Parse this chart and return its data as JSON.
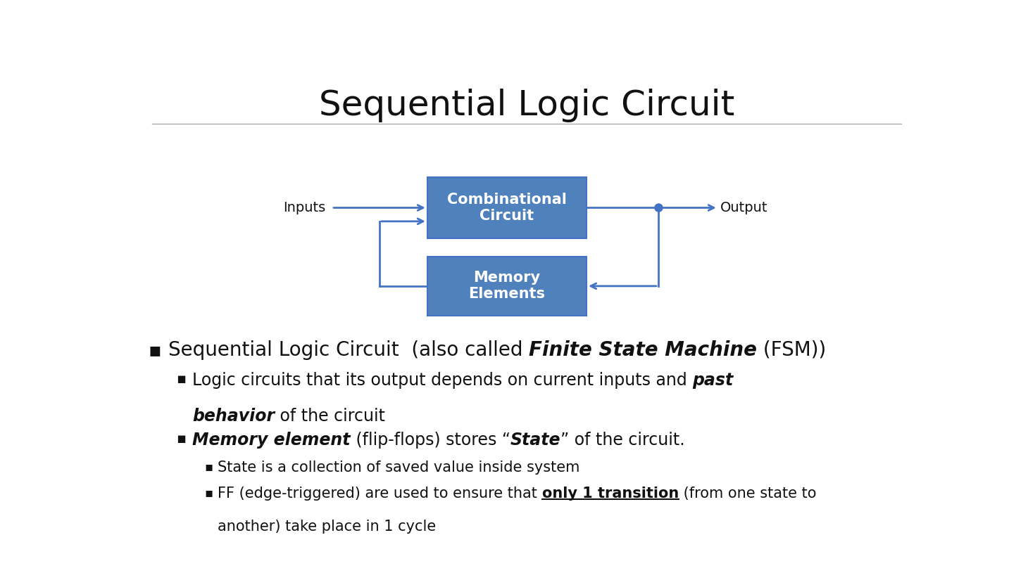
{
  "title": "Sequential Logic Circuit",
  "title_fontsize": 36,
  "background_color": "#ffffff",
  "box_color": "#4f81bd",
  "box_text_color": "#ffffff",
  "arrow_color": "#4472c4",
  "separator_color": "#aaaaaa",
  "diagram": {
    "comb_label": "Combinational\nCircuit",
    "mem_label": "Memory\nElements",
    "inputs_label": "Inputs",
    "output_label": "Output"
  },
  "bullet_points": [
    {
      "level": 1,
      "text_parts": [
        {
          "text": "Sequential Logic Circuit  (also called ",
          "style": "normal"
        },
        {
          "text": "Finite State Machine",
          "style": "bold_italic"
        },
        {
          "text": " (FSM))",
          "style": "normal"
        }
      ]
    },
    {
      "level": 2,
      "text_parts": [
        {
          "text": "Logic circuits that its output depends on current inputs and ",
          "style": "normal"
        },
        {
          "text": "past\nbehavior",
          "style": "bold_italic"
        },
        {
          "text": " of the circuit",
          "style": "normal"
        }
      ]
    },
    {
      "level": 2,
      "text_parts": [
        {
          "text": "Memory element",
          "style": "bold_italic"
        },
        {
          "text": " (flip-flops) stores “",
          "style": "normal"
        },
        {
          "text": "State",
          "style": "bold_italic"
        },
        {
          "text": "” of the circuit.",
          "style": "normal"
        }
      ]
    },
    {
      "level": 3,
      "text_parts": [
        {
          "text": "State is a collection of saved value inside system",
          "style": "normal"
        }
      ]
    },
    {
      "level": 3,
      "text_parts": [
        {
          "text": "FF (edge-triggered) are used to ensure that ",
          "style": "normal"
        },
        {
          "text": "only 1 transition",
          "style": "bold_underline"
        },
        {
          "text": " (from one state to\nanother) take place in 1 cycle",
          "style": "normal"
        }
      ]
    }
  ]
}
